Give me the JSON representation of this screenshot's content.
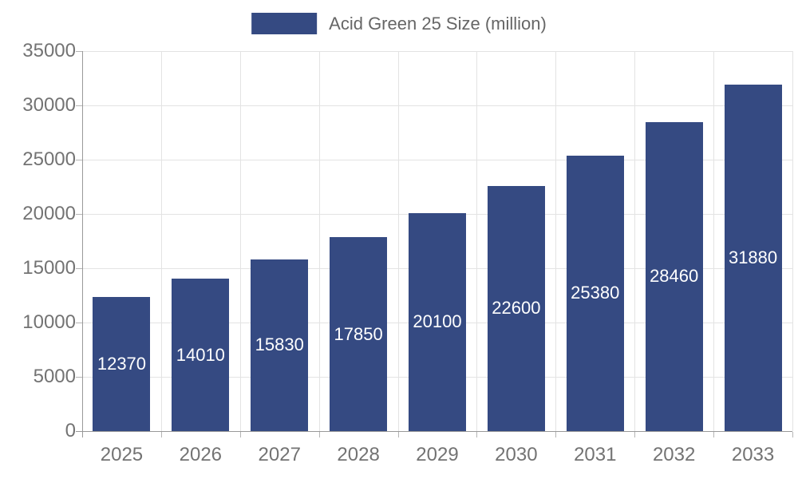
{
  "legend": {
    "label": "Acid Green 25 Size (million)"
  },
  "colors": {
    "bar": "#354A82",
    "value_label": "#ffffff",
    "axis_label": "#737373",
    "title_text": "#666666",
    "grid_line": "#e3e3e3",
    "axis_line": "#999999"
  },
  "chart_data": {
    "type": "bar",
    "title": "Acid Green 25 Size (million)",
    "categories": [
      "2025",
      "2026",
      "2027",
      "2028",
      "2029",
      "2030",
      "2031",
      "2032",
      "2033"
    ],
    "values": [
      12370,
      14010,
      15830,
      17850,
      20100,
      22600,
      25380,
      28460,
      31880
    ],
    "series_name": "Acid Green 25 Size (million)",
    "xlabel": "",
    "ylabel": "",
    "ylim": [
      0,
      35000
    ],
    "ytick_step": 5000,
    "ytick_labels": [
      "0",
      "5000",
      "10000",
      "15000",
      "20000",
      "25000",
      "30000",
      "35000"
    ],
    "grid": true,
    "legend_position": "top-center",
    "value_label_position": "inside-center"
  }
}
